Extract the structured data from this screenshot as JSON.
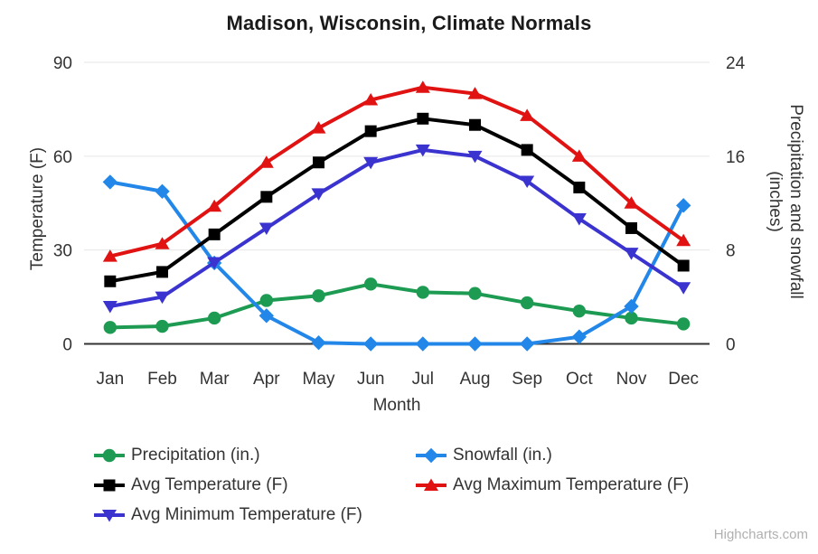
{
  "title": "Madison, Wisconsin, Climate Normals",
  "credit": "Highcharts.com",
  "chart_data": {
    "type": "line",
    "title": "Madison, Wisconsin, Climate Normals",
    "categories": [
      "Jan",
      "Feb",
      "Mar",
      "Apr",
      "May",
      "Jun",
      "Jul",
      "Aug",
      "Sep",
      "Oct",
      "Nov",
      "Dec"
    ],
    "xlabel": "Month",
    "grid": true,
    "legend_position": "bottom",
    "y_left": {
      "label": "Temperature (F)",
      "ticks": [
        0,
        30,
        60,
        90
      ],
      "range": [
        0,
        90
      ]
    },
    "y_right": {
      "label": "Precipitation and snowfall (inches)",
      "label_lines": [
        "Precipitation and snowfall",
        "(inches)"
      ],
      "ticks": [
        0,
        8,
        16,
        24
      ],
      "range": [
        0,
        24
      ]
    },
    "series": [
      {
        "name": "Precipitation (in.)",
        "axis": "right",
        "color": "#1e9b52",
        "marker": "circle",
        "values": [
          1.4,
          1.5,
          2.2,
          3.7,
          4.1,
          5.1,
          4.4,
          4.3,
          3.5,
          2.8,
          2.2,
          1.7
        ]
      },
      {
        "name": "Snowfall (in.)",
        "axis": "right",
        "color": "#2287e8",
        "marker": "diamond",
        "values": [
          13.8,
          13.0,
          6.9,
          2.4,
          0.1,
          0,
          0,
          0,
          0,
          0.6,
          3.2,
          11.8
        ]
      },
      {
        "name": "Avg Temperature (F)",
        "axis": "left",
        "color": "#000000",
        "marker": "square",
        "values": [
          20,
          23,
          35,
          47,
          58,
          68,
          72,
          70,
          62,
          50,
          37,
          25
        ]
      },
      {
        "name": "Avg Maximum Temperature (F)",
        "axis": "left",
        "color": "#e11212",
        "marker": "triangle-up",
        "values": [
          28,
          32,
          44,
          58,
          69,
          78,
          82,
          80,
          73,
          60,
          45,
          33
        ]
      },
      {
        "name": "Avg Minimum Temperature (F)",
        "axis": "left",
        "color": "#3a33cf",
        "marker": "triangle-down",
        "values": [
          12,
          15,
          26,
          37,
          48,
          58,
          62,
          60,
          52,
          40,
          29,
          18
        ]
      }
    ],
    "style": {
      "grid_color": "#e6e6e6",
      "axis_line_color": "#333333",
      "label_color": "#333333"
    }
  }
}
